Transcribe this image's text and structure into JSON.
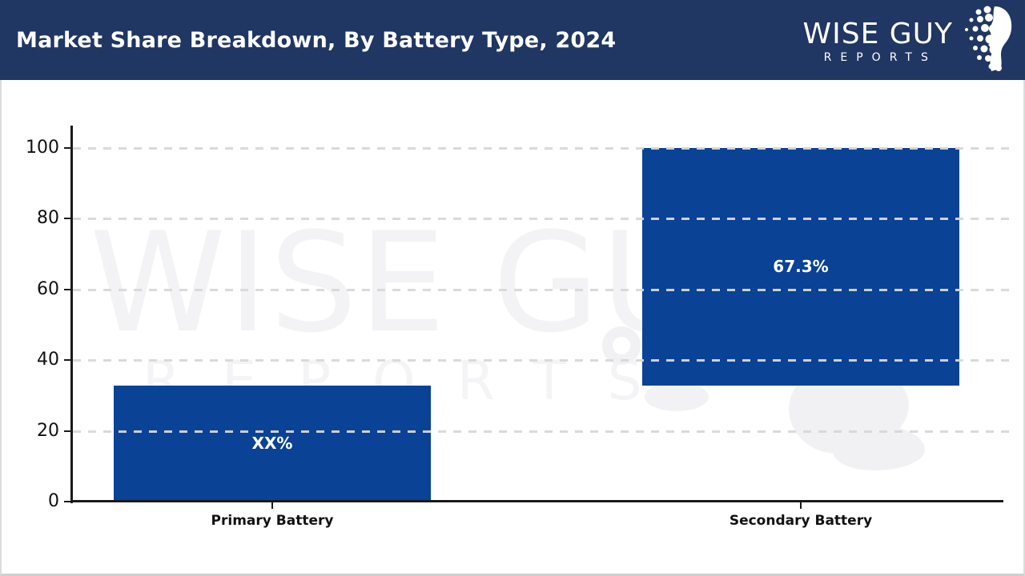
{
  "header": {
    "title": "Market Share Breakdown, By Battery Type, 2024",
    "logo": {
      "line1": "WISE GUY",
      "line2": "REPORTS"
    }
  },
  "watermark": {
    "line1": "WISE GUY",
    "line2": "REPORTS"
  },
  "chart_data": {
    "type": "bar",
    "title": "Market Share Breakdown, By Battery Type, 2024",
    "categories": [
      "Primary Battery",
      "Secondary Battery"
    ],
    "bars": [
      {
        "category": "Primary Battery",
        "label": "XX%",
        "from": 0,
        "to": 32.7
      },
      {
        "category": "Secondary Battery",
        "label": "67.3%",
        "from": 32.7,
        "to": 100
      }
    ],
    "yticks": [
      0,
      20,
      40,
      60,
      80,
      100
    ],
    "ylim": [
      0,
      106
    ],
    "xlabel": "",
    "ylabel": "",
    "grid": "horizontal-dashed",
    "legend": "none",
    "bar_color": "#0a4296",
    "bar_label_color": "#ffffff",
    "axis_color": "#1a1a1a",
    "grid_color": "#d8d8d8"
  },
  "colors": {
    "header_bg": "#203663",
    "bar": "#0a4296",
    "watermark": "#f3f3f5",
    "background": "#ffffff"
  }
}
